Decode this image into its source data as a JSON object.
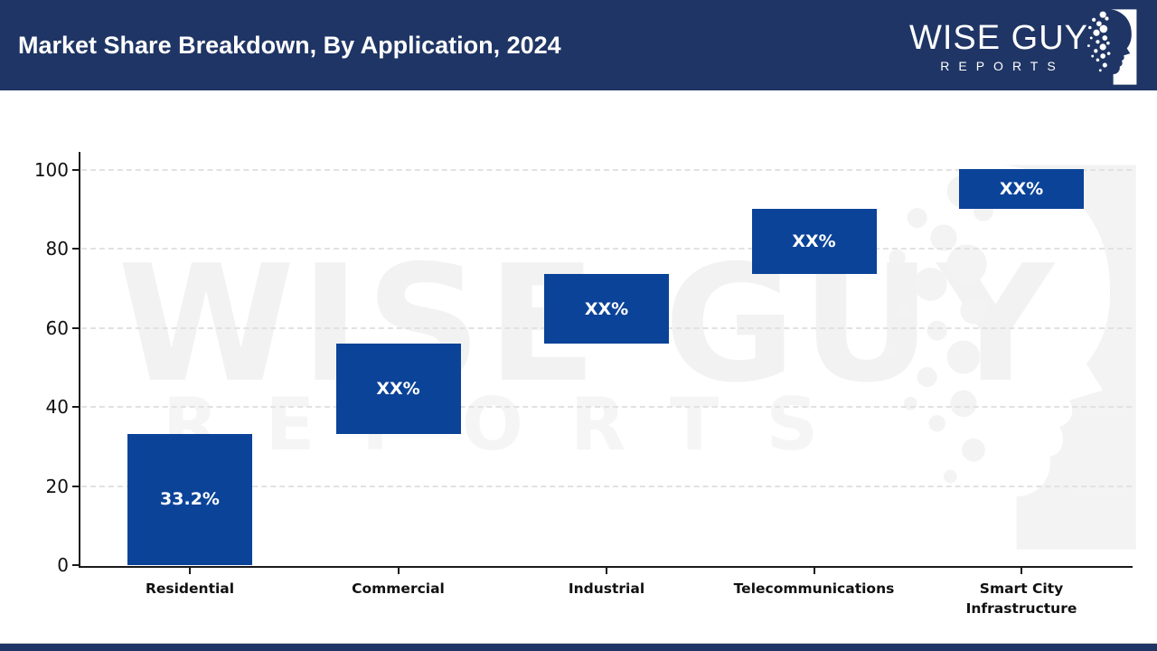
{
  "header": {
    "title": "Market Share Breakdown, By Application, 2024",
    "bg_color": "#1f3565",
    "logo": {
      "line1": "WISE GUY",
      "line2": "REPORTS"
    }
  },
  "watermark": {
    "line1": "WISE GUY",
    "line2": "REPORTS"
  },
  "chart_data": {
    "type": "bar",
    "subtype": "waterfall",
    "title": "Market Share Breakdown, By Application, 2024",
    "categories": [
      "Residential",
      "Commercial",
      "Industrial",
      "Telecommunications",
      "Smart City Infrastructure"
    ],
    "segments": [
      {
        "category": "Residential",
        "start": 0,
        "end": 33.2,
        "label": "33.2%"
      },
      {
        "category": "Commercial",
        "start": 33.2,
        "end": 55.9,
        "label": "XX%"
      },
      {
        "category": "Industrial",
        "start": 55.9,
        "end": 73.7,
        "label": "XX%"
      },
      {
        "category": "Telecommunications",
        "start": 73.7,
        "end": 90.0,
        "label": "XX%"
      },
      {
        "category": "Smart City Infrastructure",
        "start": 90.0,
        "end": 100.2,
        "label": "XX%"
      }
    ],
    "yticks": [
      0,
      20,
      40,
      60,
      80,
      100
    ],
    "ylim": [
      0,
      110
    ],
    "xlabel": "",
    "ylabel": "",
    "bar_color": "#0b4398",
    "grid": "horizontal-dashed",
    "legend": "none"
  }
}
